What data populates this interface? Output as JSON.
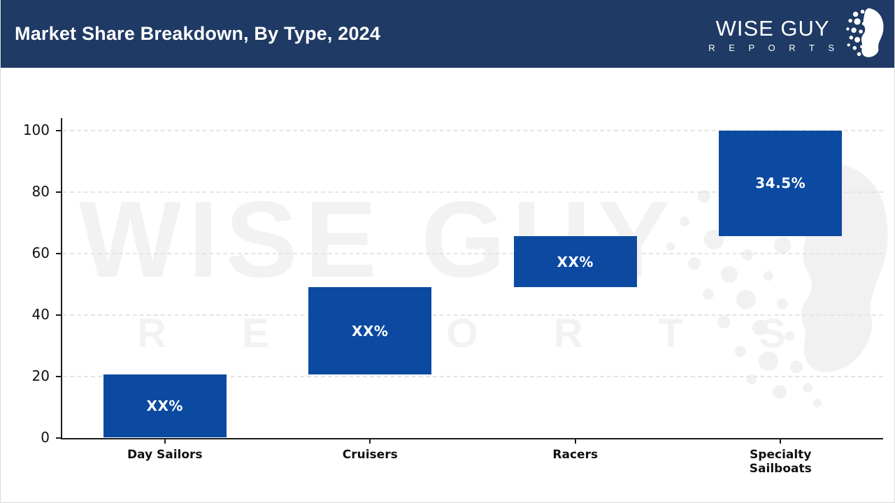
{
  "header": {
    "title": "Market Share Breakdown, By Type, 2024",
    "logo": {
      "name": "WISE GUY",
      "sub": "R E P O R T S"
    }
  },
  "watermark": {
    "name": "WISE GUY",
    "sub": "R E P O R T S"
  },
  "chart_data": {
    "type": "bar",
    "variant": "waterfall",
    "title": "Market Share Breakdown, By Type, 2024",
    "xlabel": "",
    "ylabel": "",
    "ylim": [
      0,
      104
    ],
    "yticks": [
      0,
      20,
      40,
      60,
      80,
      100
    ],
    "grid": "horizontal-dashed",
    "legend": "none",
    "bar_color": "#0b4aa0",
    "value_label_color": "#ffffff",
    "categories": [
      "Day Sailors",
      "Cruisers",
      "Racers",
      "Specialty Sailboats"
    ],
    "segments": [
      {
        "category": "Day Sailors",
        "start": 0,
        "end": 20.5,
        "value": 20.5,
        "value_label": "XX%"
      },
      {
        "category": "Cruisers",
        "start": 20.5,
        "end": 49,
        "value": 28.5,
        "value_label": "XX%"
      },
      {
        "category": "Racers",
        "start": 49,
        "end": 65.5,
        "value": 16.5,
        "value_label": "XX%"
      },
      {
        "category": "Specialty Sailboats",
        "start": 65.5,
        "end": 100,
        "value": 34.5,
        "value_label": "34.5%"
      }
    ]
  }
}
